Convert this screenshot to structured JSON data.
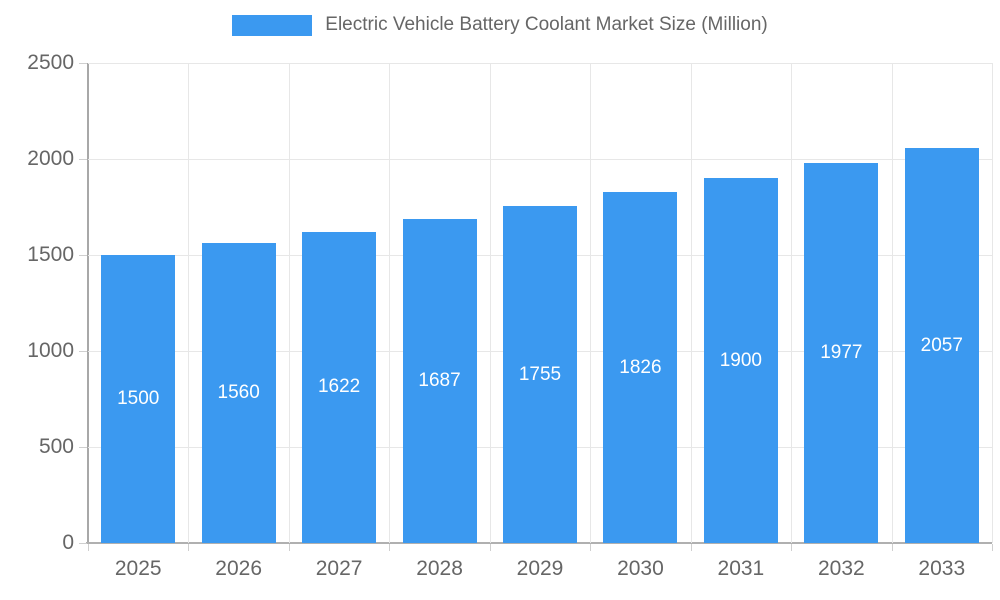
{
  "chart_data": {
    "type": "bar",
    "title": "Electric Vehicle Battery Coolant Market Size (Million)",
    "categories": [
      "2025",
      "2026",
      "2027",
      "2028",
      "2029",
      "2030",
      "2031",
      "2032",
      "2033"
    ],
    "values": [
      1500,
      1560,
      1622,
      1687,
      1755,
      1826,
      1900,
      1977,
      2057
    ],
    "value_labels": [
      "1500",
      "1560",
      "1622",
      "1687",
      "1755",
      "1826",
      "1900",
      "1977",
      "2057"
    ],
    "xlabel": "",
    "ylabel": "",
    "ylim": [
      0,
      2500
    ],
    "yticks": [
      0,
      500,
      1000,
      1500,
      2000,
      2500
    ],
    "ytick_labels": [
      "0",
      "500",
      "1000",
      "1500",
      "2000",
      "2500"
    ],
    "grid": "on",
    "legend_position": "top",
    "colors": {
      "bar": "#3b99f0",
      "value_label_text": "#ffffff",
      "axis_line": "#aaaaaa",
      "gridline": "#e7e7e7",
      "tick_text": "#666666",
      "legend_text": "#666666",
      "background": "#ffffff"
    }
  }
}
